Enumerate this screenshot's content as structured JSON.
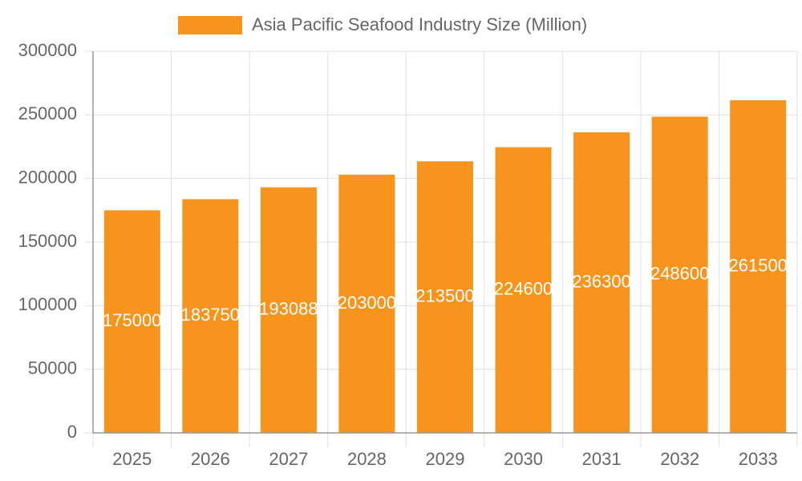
{
  "chart_data": {
    "type": "bar",
    "title": "Asia Pacific Seafood Industry Size (Million)",
    "categories": [
      "2025",
      "2026",
      "2027",
      "2028",
      "2029",
      "2030",
      "2031",
      "2032",
      "2033"
    ],
    "series": [
      {
        "name": "Asia Pacific Seafood Industry Size (Million)",
        "color": "#f7941e",
        "values": [
          175000,
          183750,
          193088,
          203000,
          213500,
          224600,
          236300,
          248600,
          261500
        ]
      }
    ],
    "ylim": [
      0,
      300000
    ],
    "yticks": [
      0,
      50000,
      100000,
      150000,
      200000,
      250000,
      300000
    ],
    "grid": true,
    "legend": "top",
    "data_labels": true
  }
}
